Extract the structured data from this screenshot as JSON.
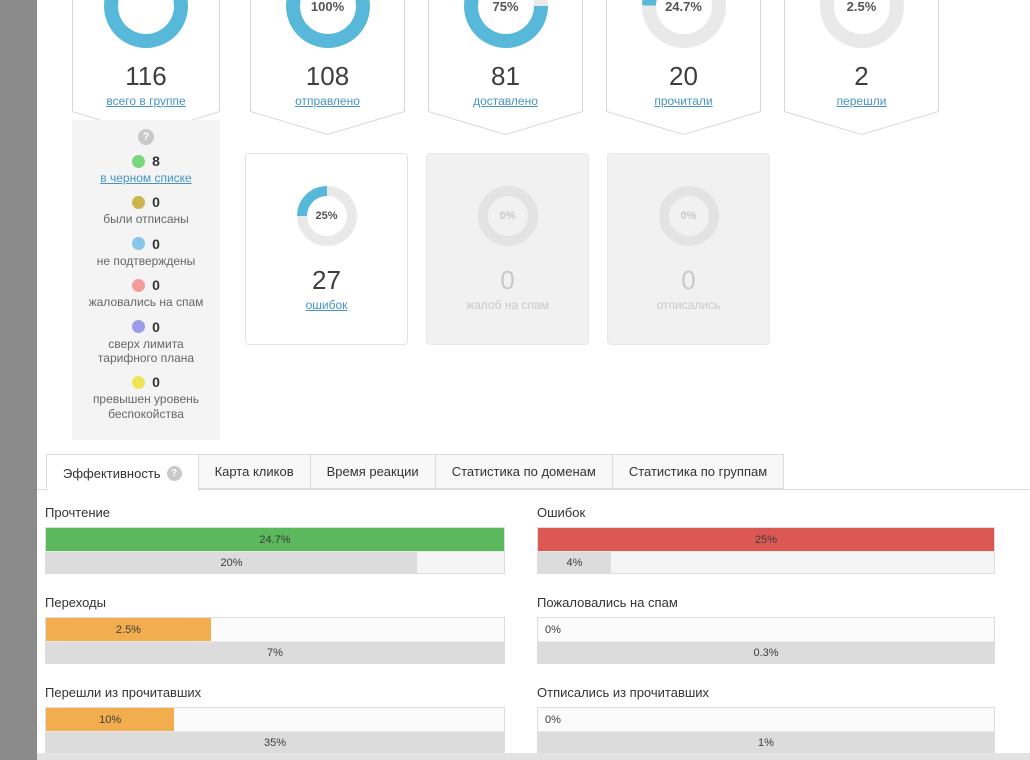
{
  "colors": {
    "accent_blue": "#57b8da",
    "green": "#5cb85c",
    "red": "#dc5853",
    "orange": "#f2ad4e",
    "link": "#4694c8"
  },
  "summary_cards": [
    {
      "value": "116",
      "label": "всего в группе",
      "percent": "",
      "ring": 100
    },
    {
      "value": "108",
      "label": "отправлено",
      "percent": "100%",
      "ring": 100
    },
    {
      "value": "81",
      "label": "доставлено",
      "percent": "75%",
      "ring": 75
    },
    {
      "value": "20",
      "label": "прочитали",
      "percent": "24.7%",
      "ring": 24.7
    },
    {
      "value": "2",
      "label": "перешли",
      "percent": "2.5%",
      "ring": 2.5
    }
  ],
  "legend": {
    "help": "?",
    "items": [
      {
        "value": "8",
        "label": "в черном списке",
        "color": "#7bd77b"
      },
      {
        "value": "0",
        "label": "были отписаны",
        "color": "#ccb54e"
      },
      {
        "value": "0",
        "label": "не подтверждены",
        "color": "#85c6e9"
      },
      {
        "value": "0",
        "label": "жаловались на спам",
        "color": "#f39b9b"
      },
      {
        "value": "0",
        "label": "сверх лимита тарифного плана",
        "color": "#9c9ce9"
      },
      {
        "value": "0",
        "label": "превышен уровень беспокойства",
        "color": "#efe456"
      }
    ]
  },
  "secondary_cards": [
    {
      "value": "27",
      "label": "ошибок",
      "percent": "25%",
      "ring": 25
    },
    {
      "value": "0",
      "label": "жалоб на спам",
      "percent": "0%",
      "ring": 0
    },
    {
      "value": "0",
      "label": "отписались",
      "percent": "0%",
      "ring": 0
    }
  ],
  "tabs": {
    "help": "?",
    "items": [
      {
        "label": "Эффективность"
      },
      {
        "label": "Карта кликов"
      },
      {
        "label": "Время реакции"
      },
      {
        "label": "Статистика по доменам"
      },
      {
        "label": "Статистика по группам"
      }
    ]
  },
  "chart_data": {
    "type": "bar",
    "title": "Эффективность",
    "columns": {
      "left": [
        {
          "title": "Прочтение",
          "value": "24.7%",
          "value_bar_pct": 100,
          "color": "#5cb85c",
          "secondary": "20%",
          "secondary_bar_pct": 81
        },
        {
          "title": "Переходы",
          "value": "2.5%",
          "value_bar_pct": 36,
          "color": "#f2ad4e",
          "secondary": "7%",
          "secondary_bar_pct": 100
        },
        {
          "title": "Перешли из прочитавших",
          "value": "10%",
          "value_bar_pct": 28,
          "color": "#f2ad4e",
          "secondary": "35%",
          "secondary_bar_pct": 100
        }
      ],
      "right": [
        {
          "title": "Ошибок",
          "value": "25%",
          "value_bar_pct": 100,
          "color": "#dc5853",
          "secondary": "4%",
          "secondary_bar_pct": 16
        },
        {
          "title": "Пожаловались на спам",
          "value": "0%",
          "value_bar_pct": 0,
          "color": "#f2ad4e",
          "secondary": "0.3%",
          "secondary_bar_pct": 100
        },
        {
          "title": "Отписались из прочитавших",
          "value": "0%",
          "value_bar_pct": 0,
          "color": "#f2ad4e",
          "secondary": "1%",
          "secondary_bar_pct": 100
        }
      ]
    }
  }
}
